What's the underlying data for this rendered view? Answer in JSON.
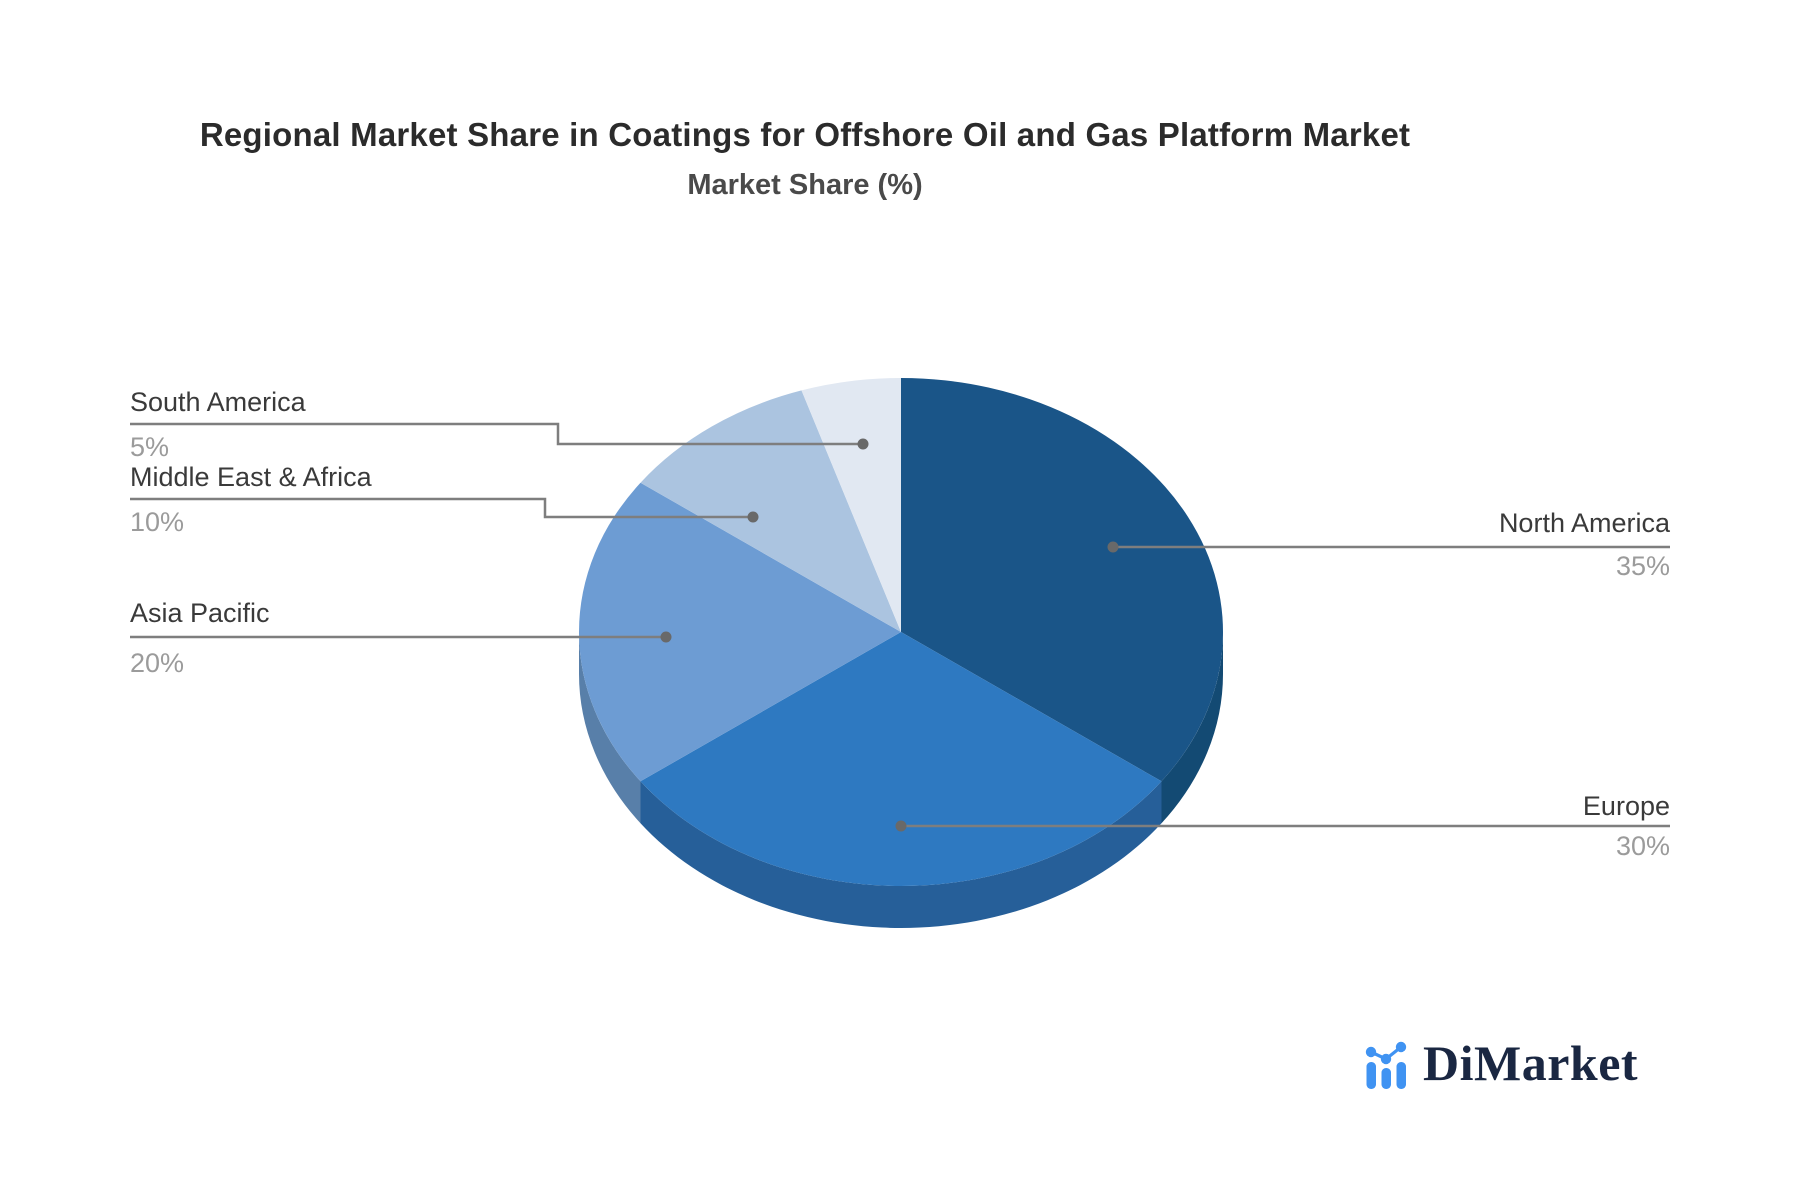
{
  "chart_data": {
    "type": "pie",
    "title": "Regional Market Share in Coatings for Offshore Oil and Gas Platform Market",
    "subtitle": "Market Share (%)",
    "unit": "%",
    "style": "3d-pie",
    "order": "clockwise-from-top",
    "legend": "none (callout labels with leader lines)",
    "slices": [
      {
        "label": "North America",
        "value": 35,
        "value_text": "35%",
        "color": "#1a5588",
        "side_color": "#134a73",
        "label_side": "right"
      },
      {
        "label": "Europe",
        "value": 30,
        "value_text": "30%",
        "color": "#2e79c1",
        "side_color": "#265f99",
        "label_side": "right"
      },
      {
        "label": "Asia Pacific",
        "value": 20,
        "value_text": "20%",
        "color": "#6d9cd3",
        "side_color": "#587fa9",
        "label_side": "left"
      },
      {
        "label": "Middle East & Africa",
        "value": 10,
        "value_text": "10%",
        "color": "#abc4e0",
        "side_color": "#8ba7c4",
        "label_side": "left"
      },
      {
        "label": "South America",
        "value": 5,
        "value_text": "5%",
        "color": "#e1e8f2",
        "side_color": "#bcc7d6",
        "label_side": "left"
      }
    ]
  },
  "colors": {
    "callout_line": "#7e7e7e",
    "callout_dot": "#696969",
    "label_text": "#3a3a3a",
    "value_text": "#9b9b9b"
  },
  "logo": {
    "text": "DiMarket",
    "icon": "bar-chart-with-trend-dots-icon",
    "icon_color": "#4093f2",
    "text_color": "#1a2742"
  }
}
